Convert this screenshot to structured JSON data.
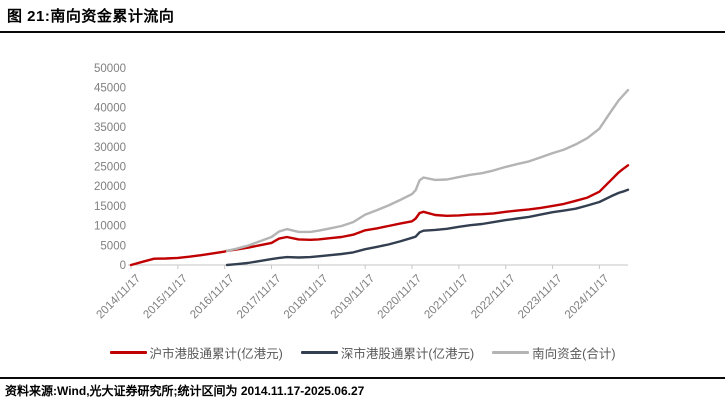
{
  "figure": {
    "title": "图 21:南向资金累计流向",
    "source_note": "资料来源:Wind,光大证券研究所;统计区间为 2014.11.17-2025.06.27"
  },
  "chart_data": {
    "type": "line",
    "title": "南向资金累计流向",
    "unit": "亿港元",
    "grid": false,
    "legend_position": "bottom",
    "ylim": [
      0,
      50000
    ],
    "y_tick_step": 5000,
    "y_ticks": [
      0,
      5000,
      10000,
      15000,
      20000,
      25000,
      30000,
      35000,
      40000,
      45000,
      50000
    ],
    "x_range": [
      "2014/11/17",
      "2025/06/27"
    ],
    "x_tick_labels": [
      "2014/11/17",
      "2015/11/17",
      "2016/11/17",
      "2017/11/17",
      "2018/11/17",
      "2019/11/17",
      "2020/11/17",
      "2021/11/17",
      "2022/11/17",
      "2023/11/17",
      "2024/11/17"
    ],
    "axis_color": "#c6c6c6",
    "tick_label_color": "#7f7f7f",
    "legend_text_color": "#595959",
    "series": [
      {
        "id": "hu",
        "name": "沪市港股通累计(亿港元)",
        "color": "#c00000",
        "points": [
          [
            "2014/11/17",
            0
          ],
          [
            "2015/02",
            800
          ],
          [
            "2015/05",
            1600
          ],
          [
            "2015/08",
            1650
          ],
          [
            "2015/11/17",
            1800
          ],
          [
            "2016/02",
            2100
          ],
          [
            "2016/05",
            2500
          ],
          [
            "2016/08",
            2950
          ],
          [
            "2016/11/17",
            3400
          ],
          [
            "2016/12/05",
            3600
          ],
          [
            "2017/02",
            3900
          ],
          [
            "2017/05",
            4400
          ],
          [
            "2017/08",
            5000
          ],
          [
            "2017/11/17",
            5600
          ],
          [
            "2018/01",
            6700
          ],
          [
            "2018/03",
            7100
          ],
          [
            "2018/06",
            6500
          ],
          [
            "2018/09",
            6400
          ],
          [
            "2018/11/17",
            6500
          ],
          [
            "2019/02",
            6800
          ],
          [
            "2019/05",
            7100
          ],
          [
            "2019/08",
            7700
          ],
          [
            "2019/11/17",
            8800
          ],
          [
            "2020/02",
            9300
          ],
          [
            "2020/05",
            9900
          ],
          [
            "2020/08",
            10500
          ],
          [
            "2020/11/17",
            11100
          ],
          [
            "2020/12",
            11800
          ],
          [
            "2021/01",
            13200
          ],
          [
            "2021/02",
            13500
          ],
          [
            "2021/05",
            12700
          ],
          [
            "2021/08",
            12500
          ],
          [
            "2021/11/17",
            12600
          ],
          [
            "2022/02",
            12800
          ],
          [
            "2022/05",
            12900
          ],
          [
            "2022/08",
            13100
          ],
          [
            "2022/11/17",
            13500
          ],
          [
            "2023/02",
            13800
          ],
          [
            "2023/05",
            14100
          ],
          [
            "2023/08",
            14500
          ],
          [
            "2023/11/17",
            15000
          ],
          [
            "2024/02",
            15500
          ],
          [
            "2024/05",
            16300
          ],
          [
            "2024/08",
            17100
          ],
          [
            "2024/11/17",
            18600
          ],
          [
            "2025/02",
            21500
          ],
          [
            "2025/04",
            23500
          ],
          [
            "2025/05",
            24300
          ],
          [
            "2025/06/27",
            25300
          ]
        ]
      },
      {
        "id": "shen",
        "name": "深市港股通累计(亿港元)",
        "color": "#333f50",
        "points": [
          [
            "2016/12/05",
            0
          ],
          [
            "2017/02",
            200
          ],
          [
            "2017/05",
            500
          ],
          [
            "2017/08",
            1000
          ],
          [
            "2017/11/17",
            1500
          ],
          [
            "2018/01",
            1800
          ],
          [
            "2018/03",
            2000
          ],
          [
            "2018/06",
            1900
          ],
          [
            "2018/09",
            2000
          ],
          [
            "2018/11/17",
            2200
          ],
          [
            "2019/02",
            2500
          ],
          [
            "2019/05",
            2800
          ],
          [
            "2019/08",
            3200
          ],
          [
            "2019/11/17",
            4000
          ],
          [
            "2020/02",
            4600
          ],
          [
            "2020/05",
            5200
          ],
          [
            "2020/08",
            6000
          ],
          [
            "2020/11/17",
            6900
          ],
          [
            "2020/12",
            7200
          ],
          [
            "2021/01",
            8300
          ],
          [
            "2021/02",
            8700
          ],
          [
            "2021/05",
            8900
          ],
          [
            "2021/08",
            9200
          ],
          [
            "2021/11/17",
            9700
          ],
          [
            "2022/02",
            10100
          ],
          [
            "2022/05",
            10400
          ],
          [
            "2022/08",
            10900
          ],
          [
            "2022/11/17",
            11400
          ],
          [
            "2023/02",
            11800
          ],
          [
            "2023/05",
            12200
          ],
          [
            "2023/08",
            12800
          ],
          [
            "2023/11/17",
            13400
          ],
          [
            "2024/02",
            13800
          ],
          [
            "2024/05",
            14300
          ],
          [
            "2024/08",
            15100
          ],
          [
            "2024/11/17",
            16000
          ],
          [
            "2025/02",
            17400
          ],
          [
            "2025/04",
            18300
          ],
          [
            "2025/05",
            18600
          ],
          [
            "2025/06/27",
            19100
          ]
        ]
      },
      {
        "id": "total",
        "name": "南向资金(合计)",
        "color": "#b4b4b4",
        "points": [
          [
            "2016/12/05",
            3600
          ],
          [
            "2017/02",
            4100
          ],
          [
            "2017/05",
            4900
          ],
          [
            "2017/08",
            6000
          ],
          [
            "2017/11/17",
            7100
          ],
          [
            "2018/01",
            8500
          ],
          [
            "2018/03",
            9100
          ],
          [
            "2018/06",
            8400
          ],
          [
            "2018/09",
            8400
          ],
          [
            "2018/11/17",
            8700
          ],
          [
            "2019/02",
            9300
          ],
          [
            "2019/05",
            9900
          ],
          [
            "2019/08",
            10900
          ],
          [
            "2019/11/17",
            12800
          ],
          [
            "2020/02",
            13900
          ],
          [
            "2020/05",
            15100
          ],
          [
            "2020/08",
            16500
          ],
          [
            "2020/11/17",
            18000
          ],
          [
            "2020/12",
            19000
          ],
          [
            "2021/01",
            21500
          ],
          [
            "2021/02",
            22200
          ],
          [
            "2021/05",
            21600
          ],
          [
            "2021/08",
            21700
          ],
          [
            "2021/11/17",
            22300
          ],
          [
            "2022/02",
            22900
          ],
          [
            "2022/05",
            23300
          ],
          [
            "2022/08",
            24000
          ],
          [
            "2022/11/17",
            24900
          ],
          [
            "2023/02",
            25600
          ],
          [
            "2023/05",
            26300
          ],
          [
            "2023/08",
            27300
          ],
          [
            "2023/11/17",
            28400
          ],
          [
            "2024/02",
            29300
          ],
          [
            "2024/05",
            30600
          ],
          [
            "2024/08",
            32200
          ],
          [
            "2024/11/17",
            34600
          ],
          [
            "2025/02",
            38900
          ],
          [
            "2025/04",
            41800
          ],
          [
            "2025/05",
            42900
          ],
          [
            "2025/06/27",
            44400
          ]
        ]
      }
    ]
  }
}
